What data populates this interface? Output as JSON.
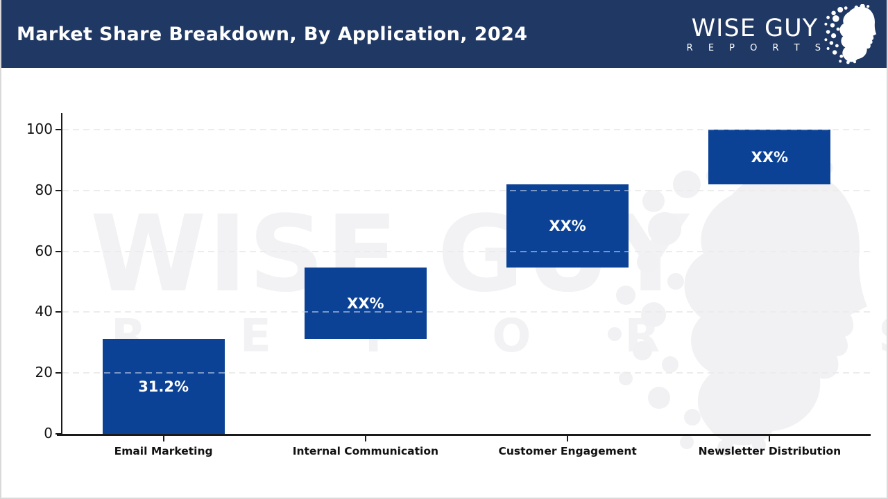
{
  "header": {
    "title": "Market Share Breakdown, By Application, 2024",
    "logo_line1": "WISE GUY",
    "logo_line2": "REPORTS"
  },
  "watermark": {
    "line1": "WISE GUY",
    "line2": "REPORTS"
  },
  "chart_data": {
    "type": "bar",
    "variant": "waterfall",
    "title": "Market Share Breakdown, By Application, 2024",
    "categories": [
      "Email Marketing",
      "Internal Communication",
      "Customer Engagement",
      "Newsletter Distribution"
    ],
    "series": [
      {
        "name": "Market Share (%)",
        "segments": [
          {
            "category": "Email Marketing",
            "start": 0,
            "end": 31.2,
            "label": "31.2%"
          },
          {
            "category": "Internal Communication",
            "start": 31.2,
            "end": 54.6,
            "label": "XX%"
          },
          {
            "category": "Customer Engagement",
            "start": 54.6,
            "end": 81.9,
            "label": "XX%"
          },
          {
            "category": "Newsletter Distribution",
            "start": 81.9,
            "end": 100,
            "label": "XX%"
          }
        ]
      }
    ],
    "xlabel": "",
    "ylabel": "",
    "ylim": [
      0,
      100
    ],
    "yticks": [
      0,
      20,
      40,
      60,
      80,
      100
    ],
    "grid": "dashed-horizontal",
    "legend": null,
    "bar_color": "#0b4295",
    "bar_label_color": "#ffffff"
  },
  "colors": {
    "header_bg": "#203864",
    "bar": "#0b4295",
    "grid": "#dcdcdc",
    "axis": "#1a1a1a",
    "watermark": "#f2f2f4",
    "border": "#d9d9d9"
  }
}
